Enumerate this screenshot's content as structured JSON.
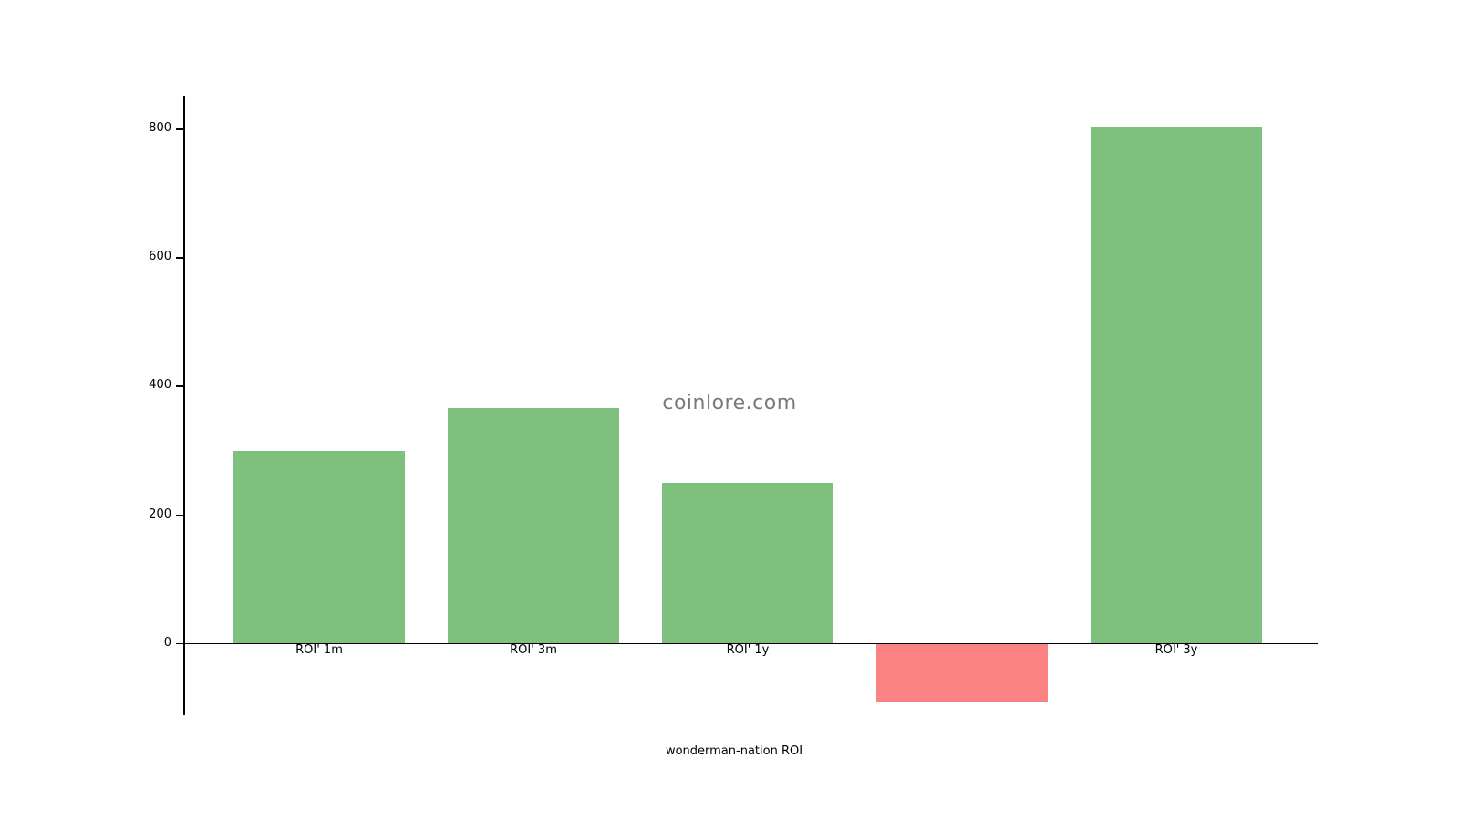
{
  "page": {
    "background": "#ffffff"
  },
  "watermark": {
    "text": "coinlore.com",
    "color": "#7a7a7a"
  },
  "chart_data": {
    "type": "bar",
    "title": "wonderman-nation ROI",
    "categories": [
      "ROI' 1m",
      "ROI' 3m",
      "ROI' 1y",
      "",
      "ROI' 3y"
    ],
    "values": [
      299,
      365,
      249,
      -90,
      803
    ],
    "positive_color": "#7EC07E",
    "negative_color": "#FB8383",
    "yticks": [
      0,
      200,
      400,
      600,
      800
    ],
    "ylim": [
      -112,
      851
    ],
    "xlabel": "",
    "ylabel": "",
    "grid": false,
    "legend": "none",
    "axis_color": "#000000",
    "text_color": "#000000"
  }
}
